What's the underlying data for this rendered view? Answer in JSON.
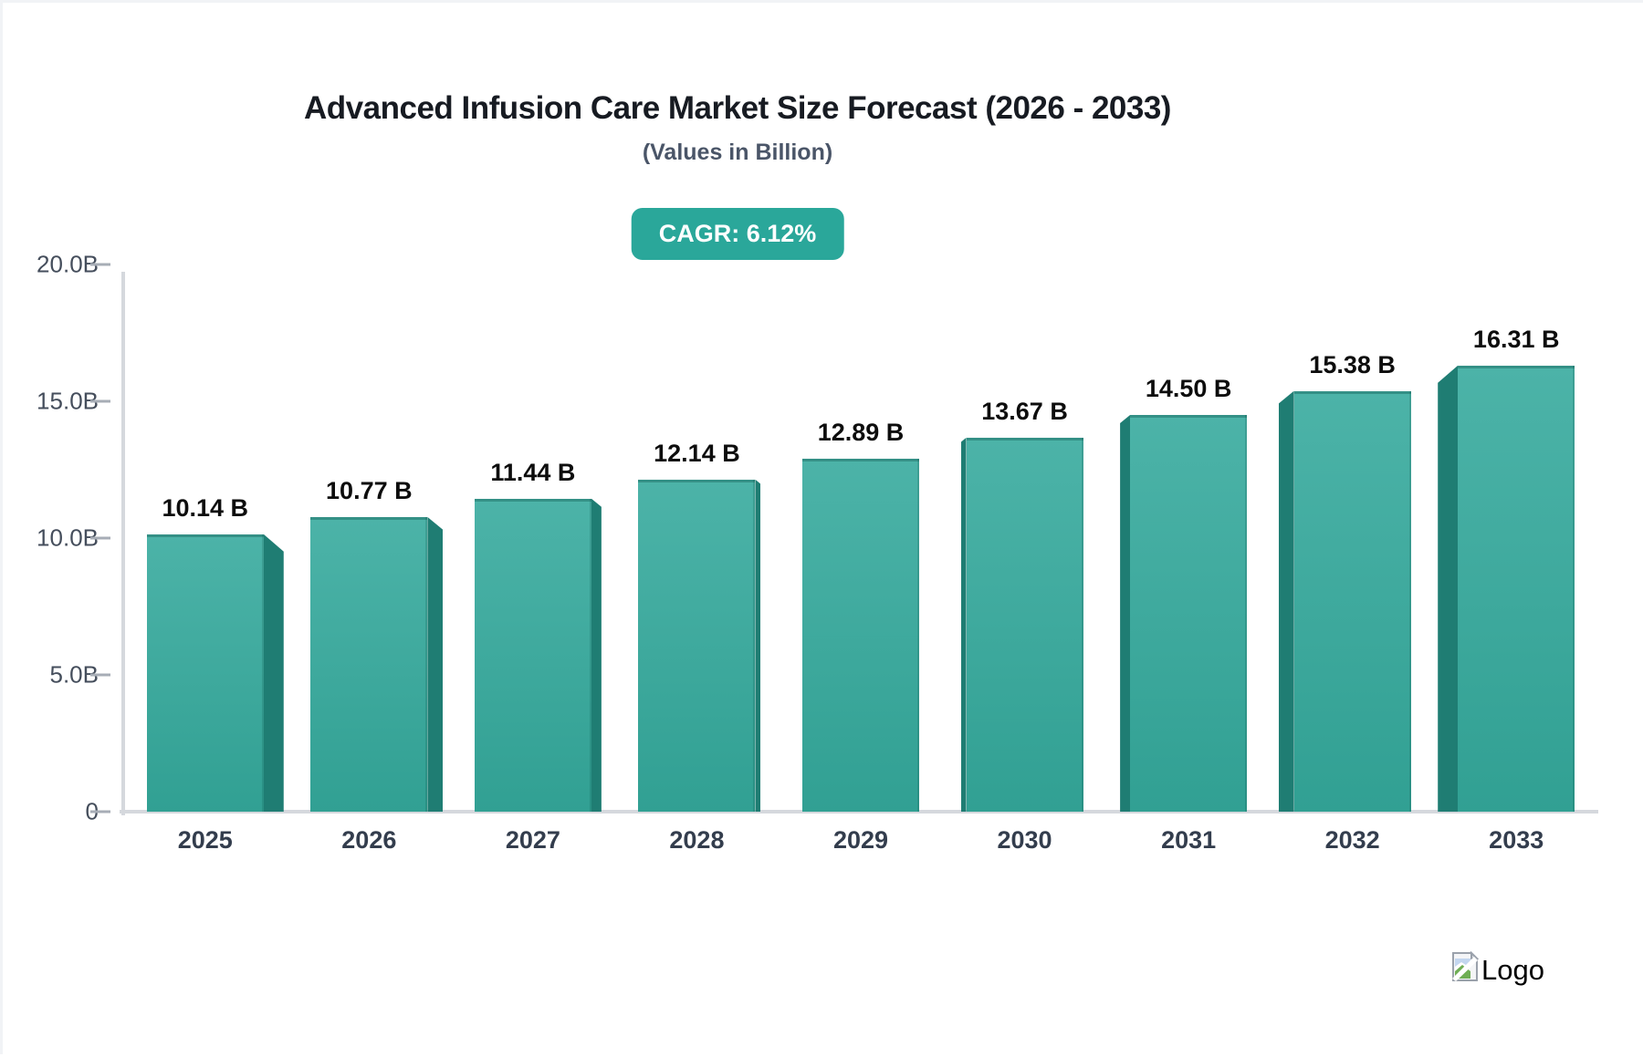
{
  "header": {
    "title": "Advanced Infusion Care Market Size Forecast (2026 - 2033)",
    "subtitle": "(Values in Billion)",
    "cagr_badge": "CAGR: 6.12%"
  },
  "chart_data": {
    "type": "bar",
    "title": "Advanced Infusion Care Market Size Forecast (2026 - 2033)",
    "subtitle": "(Values in Billion)",
    "cagr": "6.12%",
    "categories": [
      "2025",
      "2026",
      "2027",
      "2028",
      "2029",
      "2030",
      "2031",
      "2032",
      "2033"
    ],
    "values": [
      10.14,
      10.77,
      11.44,
      12.14,
      12.89,
      13.67,
      14.5,
      15.38,
      16.31
    ],
    "value_labels": [
      "10.14 B",
      "10.77 B",
      "11.44 B",
      "12.14 B",
      "12.89 B",
      "13.67 B",
      "14.50 B",
      "15.38 B",
      "16.31 B"
    ],
    "xlabel": "",
    "ylabel": "",
    "ylim": [
      0,
      20
    ],
    "yticks": [
      {
        "value": 0,
        "label": "0"
      },
      {
        "value": 5,
        "label": "5.0B"
      },
      {
        "value": 10,
        "label": "10.0B"
      },
      {
        "value": 15,
        "label": "15.0B"
      },
      {
        "value": 20,
        "label": "20.0B"
      }
    ],
    "grid": false,
    "legend": "none",
    "colors": {
      "bar_face_top": "#4cb3a8",
      "bar_face_bottom": "#31a093",
      "bar_side": "#1f7d73",
      "badge_background": "#2aa79a",
      "axis_line": "#d5d8dd",
      "tick_dash": "#a7adb6"
    }
  },
  "footer": {
    "logo_alt": "Logo"
  }
}
